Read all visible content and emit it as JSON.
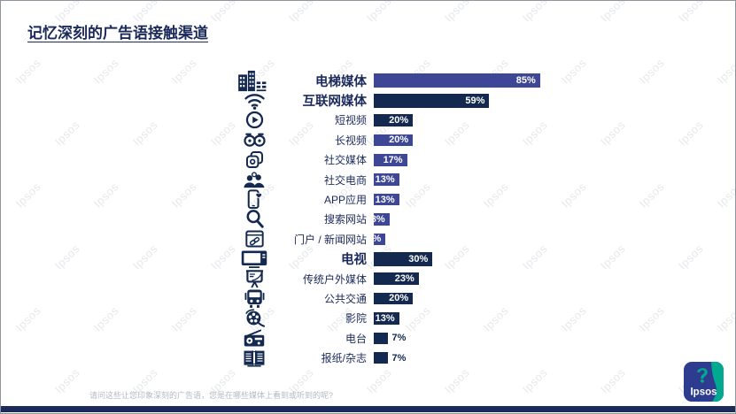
{
  "slide": {
    "title": "记忆深刻的广告语接触渠道",
    "footnote": "请问这些让您印象深刻的广告语，您是在哪些媒体上看到或听到的呢?",
    "watermark_text": "Ipsos",
    "logo_text": "Ipsos",
    "colors": {
      "navy": "#14294f",
      "indigo": "#3d4795",
      "title_text": "#1b2a5a",
      "logo_indigo": "#2e3c8f",
      "logo_teal": "#00a98f",
      "footnote_gray": "#b3b9c1"
    }
  },
  "chart_data": {
    "type": "bar",
    "orientation": "horizontal",
    "title": "记忆深刻的广告语接触渠道",
    "value_unit": "%",
    "xlim": [
      0,
      100
    ],
    "grid": false,
    "legend": false,
    "categories": [
      "电梯媒体",
      "互联网媒体",
      "短视频",
      "长视频",
      "社交媒体",
      "社交电商",
      "APP应用",
      "搜索网站",
      "门户 / 新闻网站",
      "电视",
      "传统户外媒体",
      "公共交通",
      "影院",
      "电台",
      "报纸/杂志"
    ],
    "values": [
      85,
      59,
      20,
      20,
      17,
      13,
      13,
      8,
      6,
      30,
      23,
      20,
      13,
      7,
      7
    ],
    "rows": [
      {
        "label": "电梯媒体",
        "value": 85,
        "display": "85%",
        "color": "indigo",
        "emphasis": true,
        "icon": "buildings-icon",
        "value_position": "inside"
      },
      {
        "label": "互联网媒体",
        "value": 59,
        "display": "59%",
        "color": "navy",
        "emphasis": true,
        "icon": "wifi-icon",
        "value_position": "inside"
      },
      {
        "label": "短视频",
        "value": 20,
        "display": "20%",
        "color": "navy",
        "emphasis": false,
        "icon": "play-circle-icon",
        "value_position": "inside"
      },
      {
        "label": "长视频",
        "value": 20,
        "display": "20%",
        "color": "indigo",
        "emphasis": false,
        "icon": "video-reels-icon",
        "value_position": "inside"
      },
      {
        "label": "社交媒体",
        "value": 17,
        "display": "17%",
        "color": "indigo",
        "emphasis": false,
        "icon": "stacked-apps-icon",
        "value_position": "inside"
      },
      {
        "label": "社交电商",
        "value": 13,
        "display": "13%",
        "color": "indigo",
        "emphasis": false,
        "icon": "people-commerce-icon",
        "value_position": "inside"
      },
      {
        "label": "APP应用",
        "value": 13,
        "display": "13%",
        "color": "indigo",
        "emphasis": false,
        "icon": "phone-heart-icon",
        "value_position": "inside"
      },
      {
        "label": "搜索网站",
        "value": 8,
        "display": "8%",
        "color": "indigo",
        "emphasis": false,
        "icon": "search-icon",
        "value_position": "inside"
      },
      {
        "label": "门户 / 新闻网站",
        "value": 6,
        "display": "6%",
        "color": "indigo",
        "emphasis": false,
        "icon": "browser-link-icon",
        "value_position": "inside"
      },
      {
        "label": "电视",
        "value": 30,
        "display": "30%",
        "color": "navy",
        "emphasis": true,
        "icon": "tv-icon",
        "value_position": "inside"
      },
      {
        "label": "传统户外媒体",
        "value": 23,
        "display": "23%",
        "color": "navy",
        "emphasis": false,
        "icon": "billboard-icon",
        "value_position": "inside"
      },
      {
        "label": "公共交通",
        "value": 20,
        "display": "20%",
        "color": "navy",
        "emphasis": false,
        "icon": "bus-icon",
        "value_position": "inside"
      },
      {
        "label": "影院",
        "value": 13,
        "display": "13%",
        "color": "navy",
        "emphasis": false,
        "icon": "film-reel-icon",
        "value_position": "inside"
      },
      {
        "label": "电台",
        "value": 7,
        "display": "7%",
        "color": "navy",
        "emphasis": false,
        "icon": "radio-icon",
        "value_position": "outside"
      },
      {
        "label": "报纸/杂志",
        "value": 7,
        "display": "7%",
        "color": "navy",
        "emphasis": false,
        "icon": "open-book-icon",
        "value_position": "outside"
      }
    ]
  }
}
